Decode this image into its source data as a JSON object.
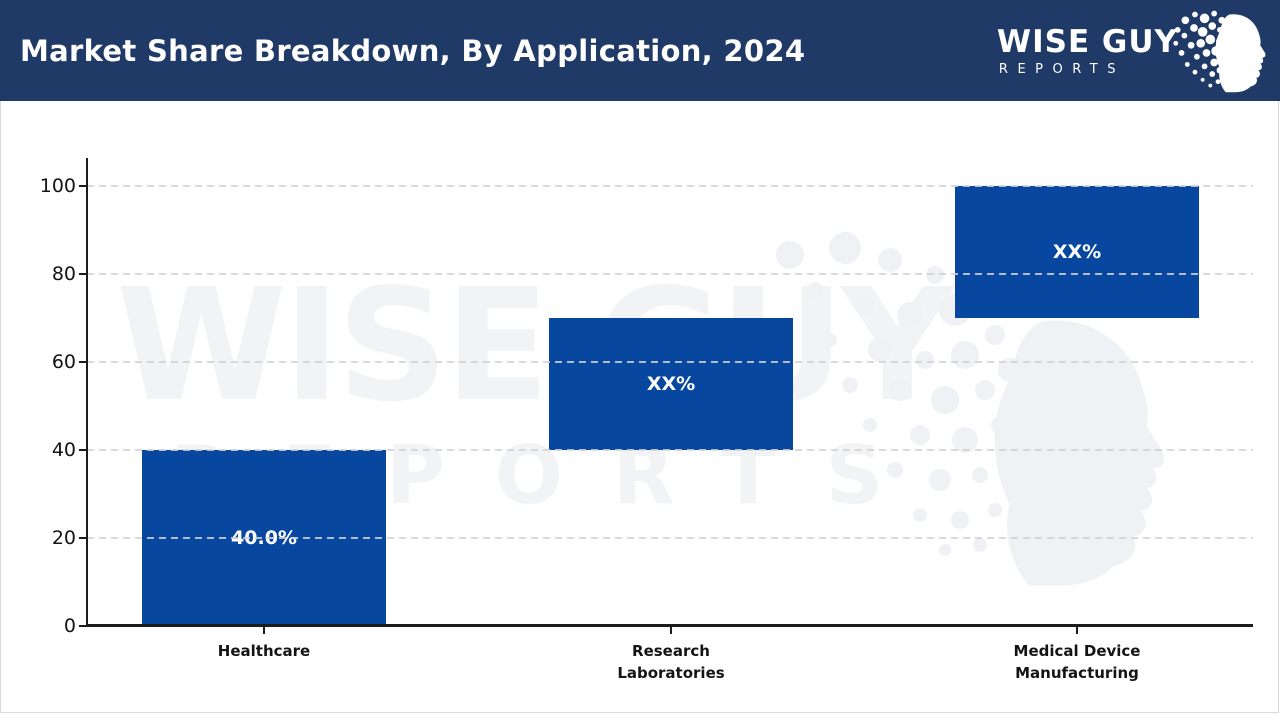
{
  "header": {
    "title": "Market Share Breakdown, By Application, 2024",
    "logo": {
      "name": "WISE GUY",
      "sub": "REPORTS",
      "head_icon": "dotted-head-profile"
    }
  },
  "watermark": {
    "line1": "WISE GUY",
    "line2": "REPORTS"
  },
  "colors": {
    "header_bg": "#1f3a67",
    "bar_fill": "#0847a0",
    "axis": "#1c1c1c",
    "gridline": "#d9d9d9",
    "bar_label_text": "#ffffff",
    "tick_text": "#141414",
    "frame_border": "#d9d9d9",
    "watermark": "#f2f3f5"
  },
  "chart_data": {
    "type": "bar",
    "subtype": "floating-segment-breakdown",
    "title": "Market Share Breakdown, By Application, 2024",
    "categories": [
      "Healthcare",
      "Research\nLaboratories",
      "Medical Device\nManufacturing"
    ],
    "bars": [
      {
        "category": "Healthcare",
        "start": 0,
        "end": 40,
        "label": "40.0%"
      },
      {
        "category": "Research Laboratories",
        "start": 40,
        "end": 70,
        "label": "XX%"
      },
      {
        "category": "Medical Device Manufacturing",
        "start": 70,
        "end": 100,
        "label": "XX%"
      }
    ],
    "xlabel": "",
    "ylabel": "",
    "ylim": [
      0,
      100
    ],
    "y_ticks": [
      0,
      20,
      40,
      60,
      80,
      100
    ],
    "grid": "horizontal-dashed",
    "legend": "none"
  }
}
